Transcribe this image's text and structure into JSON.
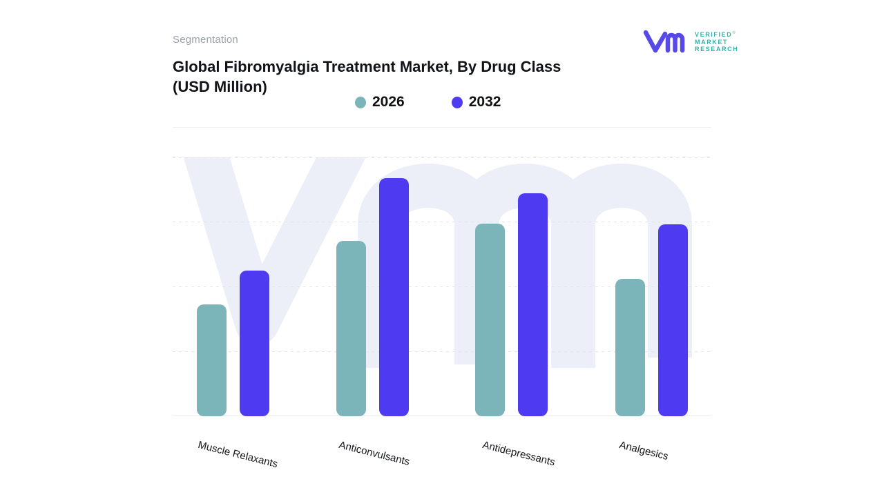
{
  "header": {
    "eyebrow": "Segmentation",
    "title_line1": "Global Fibromyalgia Treatment Market, By Drug Class",
    "title_line2": "(USD Million)"
  },
  "logo": {
    "mark_name": "vmr-monogram",
    "line1": "VERIFIED",
    "line2": "MARKET",
    "line3": "RESEARCH",
    "registered_mark": "®",
    "mark_color": "#5748e8",
    "text_color": "#2fb2a8"
  },
  "legend": {
    "items": [
      {
        "label": "2026",
        "color": "#7cb5b9"
      },
      {
        "label": "2032",
        "color": "#4e3af1"
      }
    ]
  },
  "chart_data": {
    "type": "bar",
    "title": "Global Fibromyalgia Treatment Market, By Drug Class (USD Million)",
    "categories": [
      "Muscle Relaxants",
      "Anticonvulsants",
      "Antidepressants",
      "Analgesics"
    ],
    "series": [
      {
        "name": "2026",
        "color": "#7cb5b9",
        "values": [
          1.73,
          2.71,
          2.98,
          2.12
        ]
      },
      {
        "name": "2032",
        "color": "#4e3af1",
        "values": [
          2.25,
          3.68,
          3.45,
          2.97
        ]
      }
    ],
    "xlabel": "",
    "ylabel": "",
    "ylim": [
      0,
      4
    ],
    "y_axis_tick_labels": "none visible; values estimated in gridline intervals from baseline",
    "grid": "horizontal dashed lines only",
    "legend_position": "top-center",
    "bar_corner_radius": 10,
    "watermark": "large light vm monogram behind bars",
    "background_color": "#ffffff"
  }
}
